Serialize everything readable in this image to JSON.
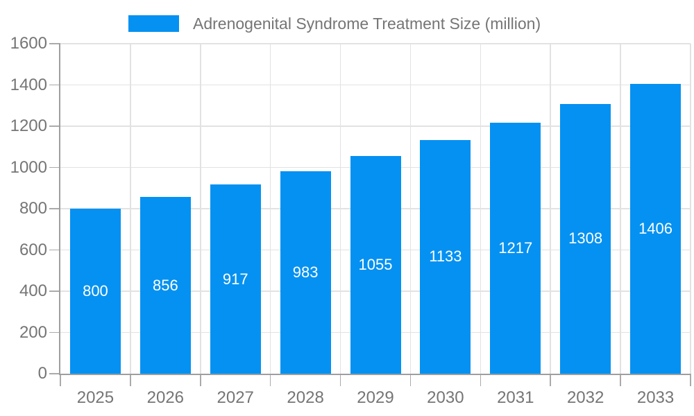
{
  "chart_data": {
    "type": "bar",
    "title": "Adrenogenital Syndrome Treatment Size (million)",
    "categories": [
      "2025",
      "2026",
      "2027",
      "2028",
      "2029",
      "2030",
      "2031",
      "2032",
      "2033"
    ],
    "values": [
      800,
      856,
      917,
      983,
      1055,
      1133,
      1217,
      1308,
      1406
    ],
    "series": [
      {
        "name": "Adrenogenital Syndrome Treatment Size (million)",
        "values": [
          800,
          856,
          917,
          983,
          1055,
          1133,
          1217,
          1308,
          1406
        ]
      }
    ],
    "xlabel": "",
    "ylabel": "",
    "ylim": [
      0,
      1600
    ],
    "ytick_step": 200,
    "ytick_labels": [
      "0",
      "200",
      "400",
      "600",
      "800",
      "1000",
      "1200",
      "1400",
      "1600"
    ],
    "grid": true,
    "legend_position": "top",
    "bar_labels_shown": true,
    "colors": {
      "bar": "#0591f1",
      "bar_label": "#ffffff",
      "axis_text": "#757575",
      "axis_line": "#9e9e9e",
      "tick": "#aaaaaa",
      "gridline": "#e2e2e2",
      "background": "#ffffff"
    }
  }
}
